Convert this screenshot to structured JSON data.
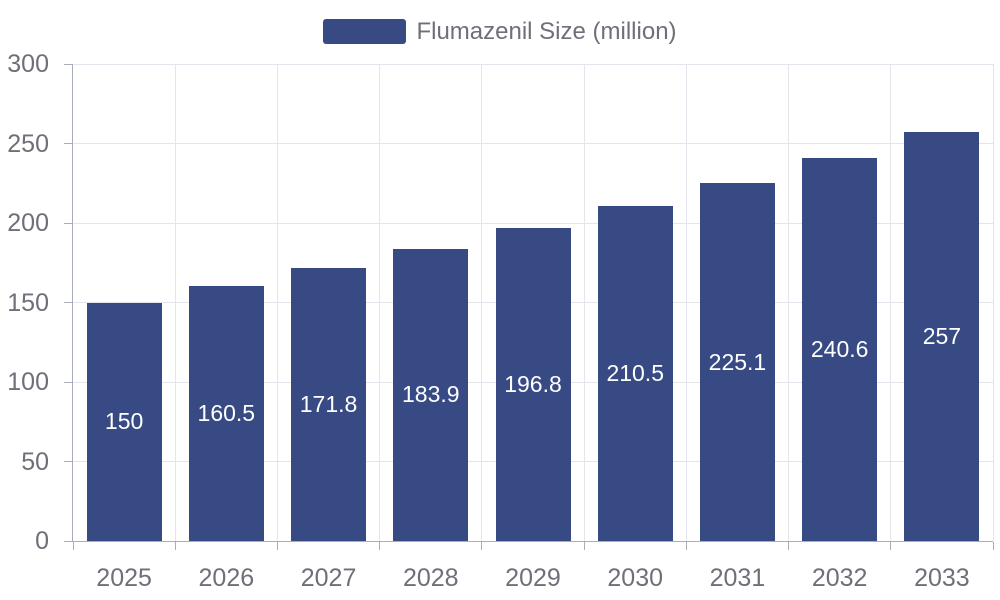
{
  "chart_data": {
    "type": "bar",
    "title": "",
    "series_name": "Flumazenil Size (million)",
    "categories": [
      "2025",
      "2026",
      "2027",
      "2028",
      "2029",
      "2030",
      "2031",
      "2032",
      "2033"
    ],
    "values": [
      150,
      160.5,
      171.8,
      183.9,
      196.8,
      210.5,
      225.1,
      240.6,
      257
    ],
    "ylim": [
      0,
      300
    ],
    "y_ticks": [
      0,
      50,
      100,
      150,
      200,
      250,
      300
    ],
    "grid": true,
    "legend_position": "top-center",
    "value_labels": "inside-center",
    "colors": {
      "bar": "#384A84",
      "bar_value_label": "#FFFFFF",
      "axis_line": "#A8AEB9",
      "gridline": "#E2E5EC",
      "axis_tick_label": "#6E7079",
      "legend_text": "#6E7079",
      "background": "#FFFFFF"
    }
  }
}
